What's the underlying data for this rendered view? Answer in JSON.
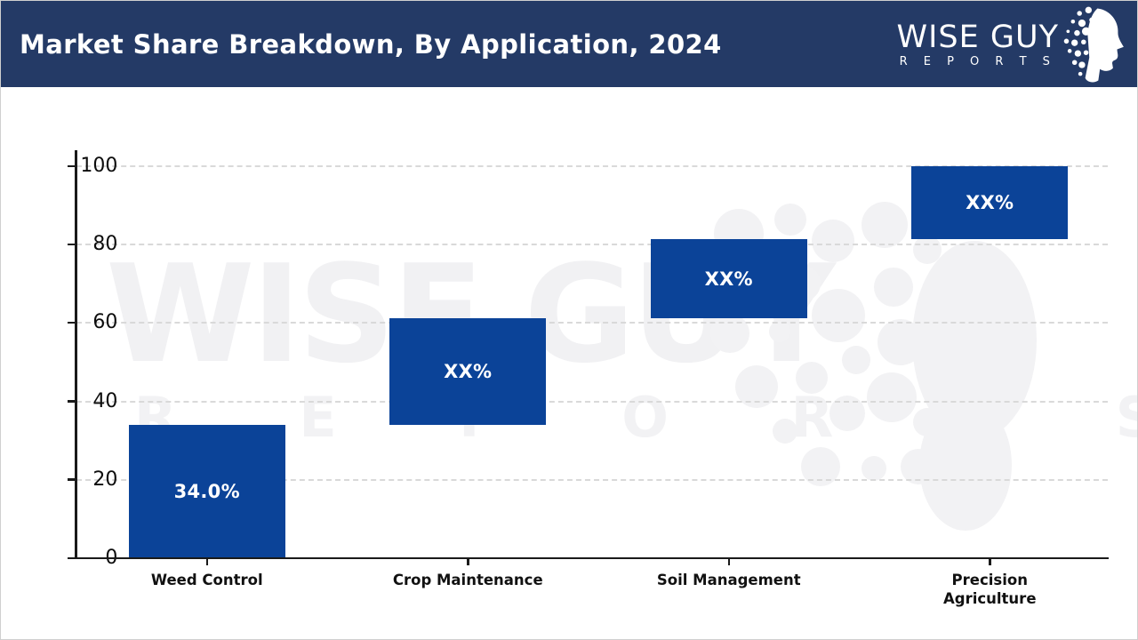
{
  "header": {
    "title": "Market Share Breakdown, By Application, 2024",
    "bg_color": "#243a66",
    "logo": {
      "line1": "WISE GUY",
      "line2": "R E P O R T S"
    }
  },
  "watermark": {
    "line1": "WISE GUY",
    "line2": "R E P O R T S"
  },
  "chart_data": {
    "type": "bar",
    "subtype": "waterfall",
    "title": "Market Share Breakdown, By Application, 2024",
    "categories": [
      "Weed Control",
      "Crop Maintenance",
      "Soil Management",
      "Precision\nAgriculture"
    ],
    "segments": [
      [
        0,
        34.0
      ],
      [
        34.0,
        61.2
      ],
      [
        61.2,
        81.4
      ],
      [
        81.4,
        100.0
      ]
    ],
    "values_pct": [
      34.0,
      27.2,
      20.2,
      18.6
    ],
    "bar_labels": [
      "34.0%",
      "XX%",
      "XX%",
      "XX%"
    ],
    "yticks": [
      0,
      20,
      40,
      60,
      80,
      100
    ],
    "ylim": [
      0,
      100
    ],
    "xlabel": "",
    "ylabel": "",
    "legend": "none",
    "grid": "horizontal-dashed",
    "bar_color": "#0b4398",
    "bar_label_color": "#ffffff",
    "axis_color": "#1a1a1a",
    "gridline_color": "#d9d9d9"
  }
}
